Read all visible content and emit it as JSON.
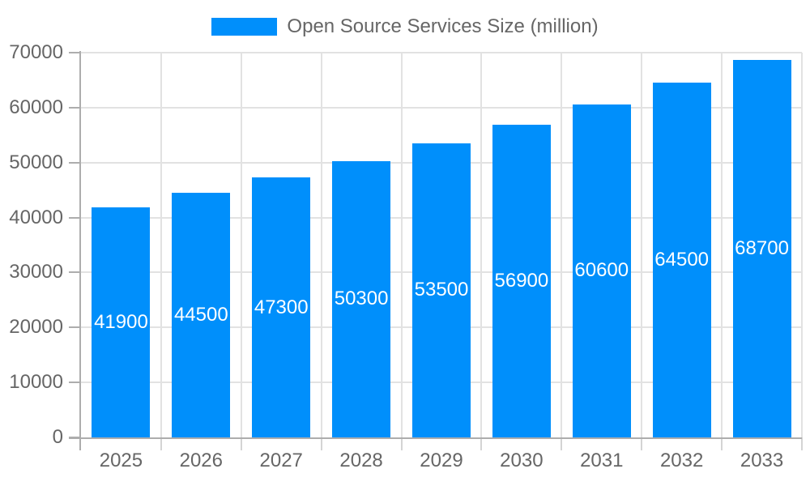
{
  "chart_data": {
    "type": "bar",
    "title": "Open Source Services Size (million)",
    "legend": {
      "label": "Open Source Services Size (million)",
      "position": "top"
    },
    "categories": [
      "2025",
      "2026",
      "2027",
      "2028",
      "2029",
      "2030",
      "2031",
      "2032",
      "2033"
    ],
    "values": [
      41900,
      44500,
      47300,
      50300,
      53500,
      56900,
      60600,
      64500,
      68700
    ],
    "value_labels": [
      "41900",
      "44500",
      "47300",
      "50300",
      "53500",
      "56900",
      "60600",
      "64500",
      "68700"
    ],
    "xlabel": "",
    "ylabel": "",
    "ylim": [
      0,
      70000
    ],
    "ytick_step": 10000,
    "y_tick_labels": [
      "0",
      "10000",
      "20000",
      "30000",
      "40000",
      "50000",
      "60000",
      "70000"
    ],
    "grid": true,
    "value_label_position": "center-of-bar",
    "colors": {
      "bar": "#008FFB",
      "grid": "#e2e2e2",
      "axis": "#adadad",
      "x_tick": "#d4d4d4",
      "text": "#666666",
      "value_label": "#ffffff",
      "background": "#ffffff"
    }
  }
}
